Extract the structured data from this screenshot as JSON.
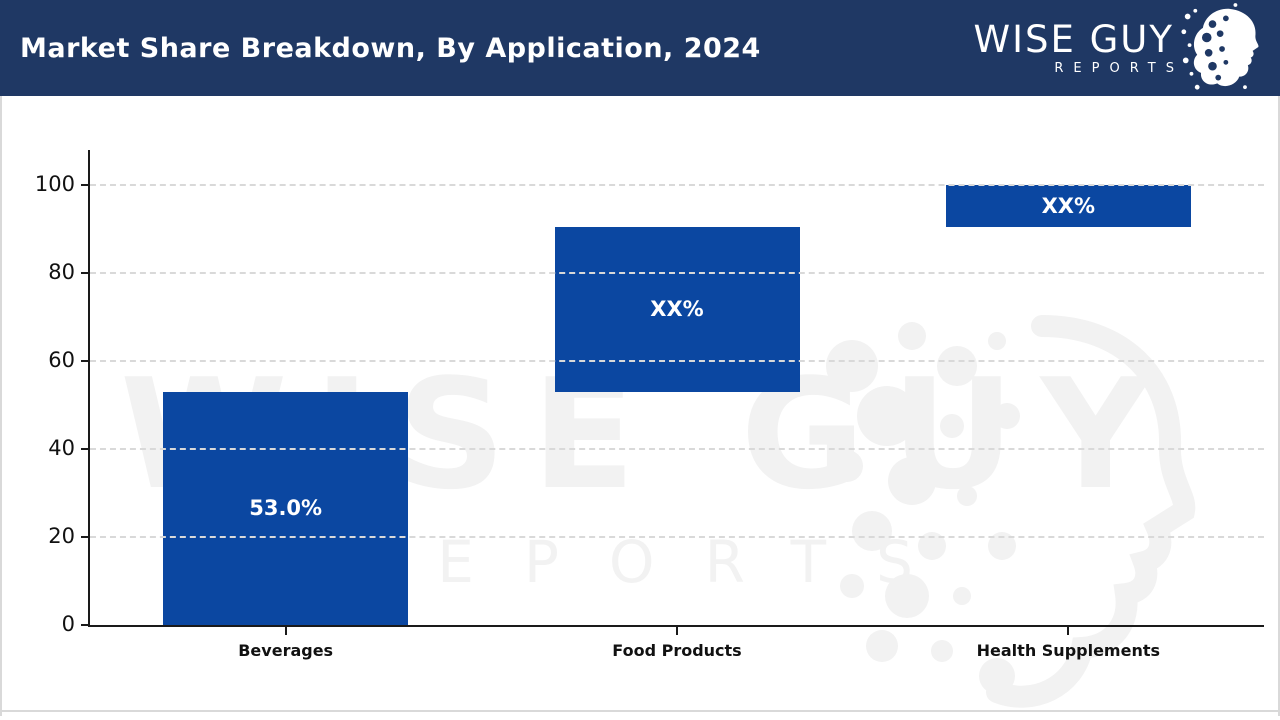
{
  "header": {
    "title": "Market Share Breakdown, By Application, 2024",
    "logo": {
      "line1": "WISE GUY",
      "line2": "REPORTS"
    }
  },
  "watermark": {
    "line1": "WISE GUY",
    "line2": "REPORTS"
  },
  "chart_data": {
    "type": "bar",
    "subtype": "floating-segment-waterfall",
    "title": "Market Share Breakdown, By Application, 2024",
    "categories": [
      "Beverages",
      "Food Products",
      "Health Supplements"
    ],
    "bars": [
      {
        "category": "Beverages",
        "start": 0,
        "end": 53.0,
        "value": 53.0,
        "label": "53.0%"
      },
      {
        "category": "Food Products",
        "start": 53.0,
        "end": 90.5,
        "value": 37.5,
        "label": "XX%"
      },
      {
        "category": "Health Supplements",
        "start": 90.5,
        "end": 100.0,
        "value": 9.5,
        "label": "XX%"
      }
    ],
    "yticks": [
      0,
      20,
      40,
      60,
      80,
      100
    ],
    "ylim": [
      0,
      108
    ],
    "xlabel": "",
    "ylabel": "",
    "grid": "horizontal-dashed",
    "grid_over_bars": true,
    "legend": null,
    "colors": {
      "bar": "#0b47a1",
      "bar_label": "#ffffff",
      "grid": "#d9d9d9",
      "axis": "#1a1a1a",
      "tick_label": "#111111"
    }
  },
  "colors": {
    "header_bg": "#1f3864",
    "content_bg": "#ffffff",
    "watermark": "#f2f2f2",
    "frame_border": "#d9d9d9"
  }
}
